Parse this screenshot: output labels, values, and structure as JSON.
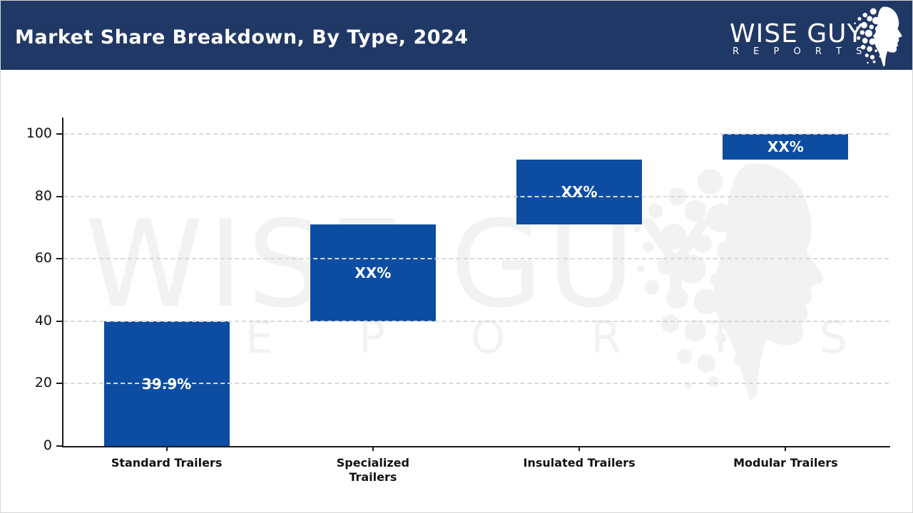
{
  "header": {
    "title": "Market Share Breakdown, By Type, 2024",
    "logo": {
      "brand_line1": "WISE GUY",
      "brand_line2": "R E P O R T S"
    }
  },
  "watermark": {
    "line1": "WISE GUY",
    "line2": "R E P O R T S"
  },
  "chart_data": {
    "type": "bar",
    "subtype": "waterfall",
    "title": "Market Share Breakdown, By Type, 2024",
    "categories": [
      "Standard Trailers",
      "Specialized Trailers",
      "Insulated Trailers",
      "Modular Trailers"
    ],
    "category_display_lines": [
      [
        "Standard Trailers"
      ],
      [
        "Specialized",
        "Trailers"
      ],
      [
        "Insulated Trailers"
      ],
      [
        "Modular Trailers"
      ]
    ],
    "segments": [
      {
        "category": "Standard Trailers",
        "start": 0,
        "end": 39.9,
        "label": "39.9%"
      },
      {
        "category": "Specialized Trailers",
        "start": 39.9,
        "end": 71,
        "label": "XX%"
      },
      {
        "category": "Insulated Trailers",
        "start": 71,
        "end": 91.8,
        "label": "XX%"
      },
      {
        "category": "Modular Trailers",
        "start": 91.8,
        "end": 100,
        "label": "XX%"
      }
    ],
    "xlabel": "",
    "ylabel": "",
    "yticks": [
      0,
      20,
      40,
      60,
      80,
      100
    ],
    "ylim": [
      0,
      105
    ],
    "grid": "horizontal-dashed",
    "legend": "none",
    "bar_color": "#0c4da2",
    "bar_label_color": "#ffffff",
    "axis_color": "#1a1a1a",
    "grid_color": "#d9d9d9"
  },
  "colors": {
    "header_bg": "#203865",
    "body_bg": "#ffffff",
    "watermark": "#f2f2f3",
    "title_text": "#ffffff",
    "tick_text": "#111111"
  }
}
